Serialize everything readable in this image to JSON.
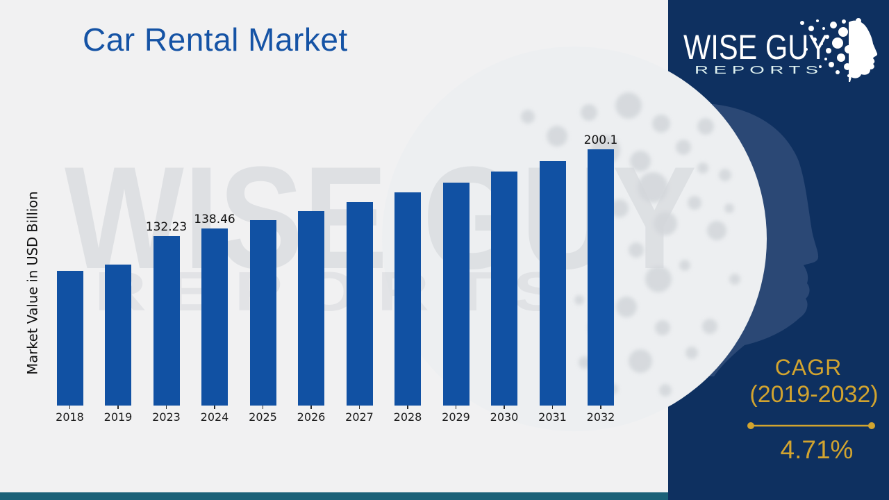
{
  "page": {
    "title": "Car Rental Market"
  },
  "brand": {
    "name_line1": "WISE GUY",
    "name_line2": "R E P O R T S"
  },
  "watermark": {
    "line1": "WISE GUY",
    "line2": "R E P O R T S"
  },
  "cagr": {
    "label": "CAGR",
    "range": "(2019-2032)",
    "value": "4.71%"
  },
  "colors": {
    "bar": "#1151a3",
    "navy_panel": "#0e3060",
    "accent_teal": "#1b6178",
    "gold": "#d2a42f",
    "title_blue": "#1553a5",
    "background": "#f1f1f2"
  },
  "chart_data": {
    "type": "bar",
    "title": "Car Rental Market",
    "xlabel": "",
    "ylabel": "Market Value in USD Billion",
    "categories": [
      "2018",
      "2019",
      "2023",
      "2024",
      "2025",
      "2026",
      "2027",
      "2028",
      "2029",
      "2030",
      "2031",
      "2032"
    ],
    "values": [
      105.0,
      110.0,
      132.23,
      138.46,
      144.98,
      151.81,
      158.96,
      166.45,
      174.29,
      182.5,
      191.09,
      200.1
    ],
    "bar_labels": [
      "",
      "",
      "132.23",
      "138.46",
      "",
      "",
      "",
      "",
      "",
      "",
      "",
      "200.1"
    ],
    "ylim": [
      0,
      210
    ],
    "grid": false,
    "legend": "none"
  }
}
